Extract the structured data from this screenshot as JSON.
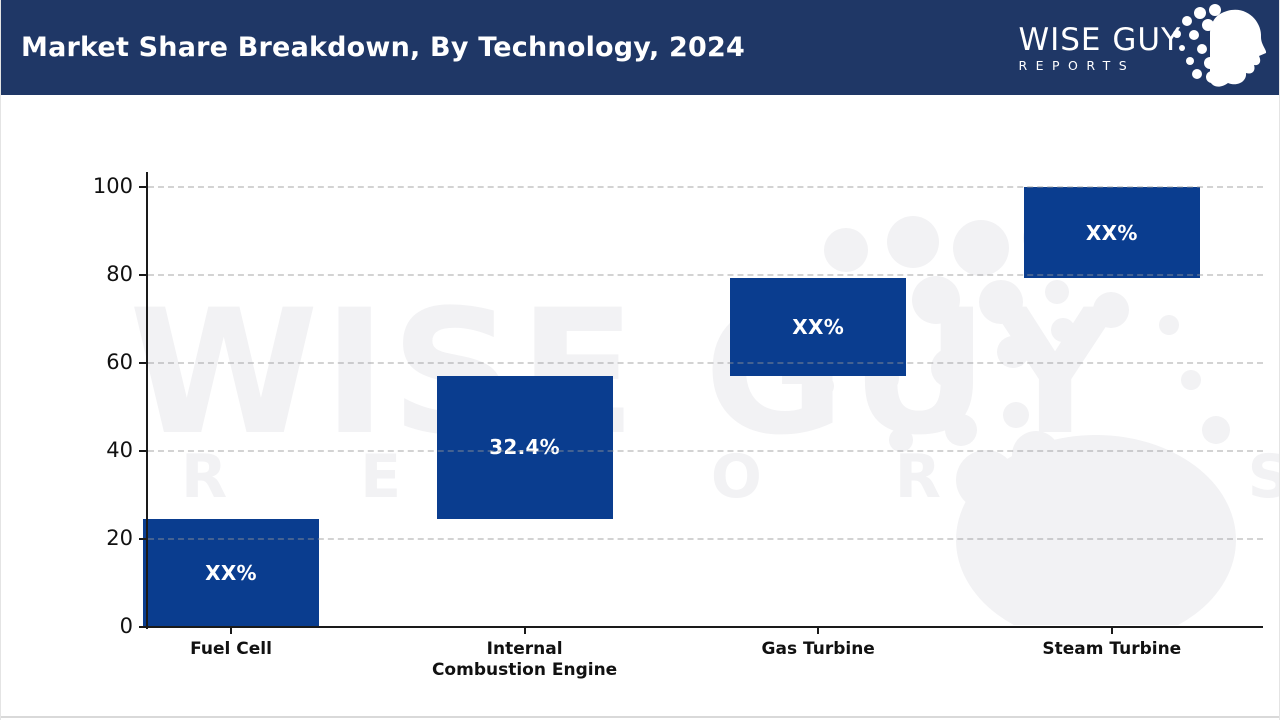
{
  "header": {
    "title": "Market Share Breakdown, By Technology, 2024"
  },
  "logo": {
    "name": "WISE GUY",
    "sub": "REPORTS"
  },
  "watermark": {
    "line1": "WISE GUY",
    "line2": "R E P O R T S"
  },
  "colors": {
    "header_bg": "#1f3766",
    "bar": "#0a3d8f",
    "grid": "#d9d9d9",
    "axis": "#1a1a1a",
    "watermark": "#f2f2f4",
    "bar_label": "#ffffff"
  },
  "chart_data": {
    "type": "bar",
    "subtype": "waterfall-stacked-segments",
    "title": "Market Share Breakdown, By Technology, 2024",
    "categories": [
      [
        "Fuel Cell"
      ],
      [
        "Internal",
        "Combustion Engine"
      ],
      [
        "Gas Turbine"
      ],
      [
        "Steam Turbine"
      ]
    ],
    "series": [
      {
        "name": "Market Share (%)",
        "segments": [
          {
            "category": "Fuel Cell",
            "start": 0,
            "end": 24.6,
            "label": "XX%"
          },
          {
            "category": "Internal Combustion Engine",
            "start": 24.6,
            "end": 57.0,
            "label": "32.4%"
          },
          {
            "category": "Gas Turbine",
            "start": 57.0,
            "end": 79.3,
            "label": "XX%"
          },
          {
            "category": "Steam Turbine",
            "start": 79.3,
            "end": 100.0,
            "label": "XX%"
          }
        ]
      }
    ],
    "ylim": [
      0,
      104
    ],
    "yticks": [
      0,
      20,
      40,
      60,
      80,
      100
    ],
    "xlabel": "",
    "ylabel": "",
    "grid": "horizontal dashed",
    "legend": "none",
    "bar_color": "#0a3d8f"
  }
}
